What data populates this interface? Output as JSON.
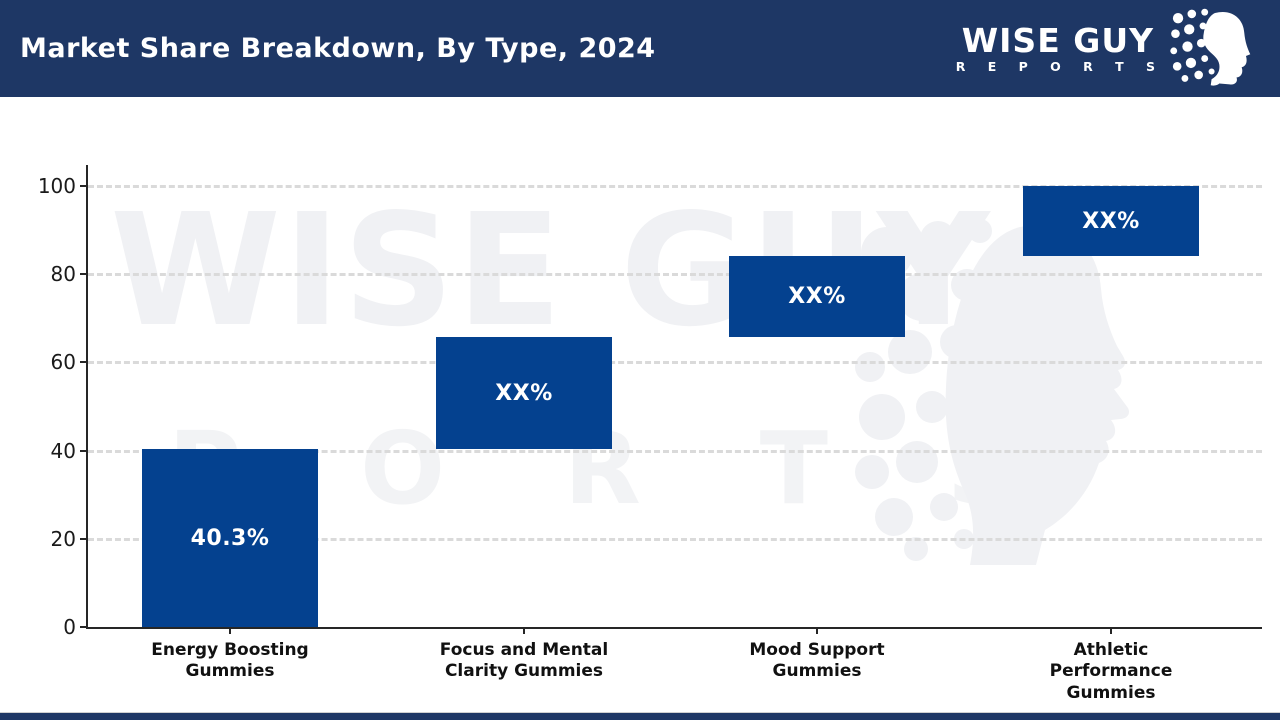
{
  "header": {
    "title": "Market Share Breakdown, By Type, 2024",
    "logo": {
      "name": "WISE GUY",
      "subname": "R E P O R T S"
    }
  },
  "watermark": {
    "line1": "WISE GUY",
    "line2": "P O R T S",
    "head_icon": "dotted-head-profile"
  },
  "chart_data": {
    "type": "bar",
    "variant": "waterfall",
    "title": "Market Share Breakdown, By Type, 2024",
    "categories": [
      "Energy Boosting\nGummies",
      "Focus and Mental\nClarity Gummies",
      "Mood Support\nGummies",
      "Athletic\nPerformance\nGummies"
    ],
    "segments": [
      {
        "category": "Energy Boosting Gummies",
        "start": 0,
        "end": 40.3,
        "label": "40.3%"
      },
      {
        "category": "Focus and Mental Clarity Gummies",
        "start": 40.3,
        "end": 65.8,
        "label": "XX%"
      },
      {
        "category": "Mood Support Gummies",
        "start": 65.8,
        "end": 84.1,
        "label": "XX%"
      },
      {
        "category": "Athletic Performance Gummies",
        "start": 84.1,
        "end": 100,
        "label": "XX%"
      }
    ],
    "xlabel": "",
    "ylabel": "",
    "yticks": [
      0,
      20,
      40,
      60,
      80,
      100
    ],
    "ylim": [
      0,
      105
    ],
    "grid": "horizontal-dashed",
    "legend": "none",
    "bar_color": "#04418f",
    "bar_label_color": "#ffffff"
  },
  "colors": {
    "header_bg": "#1e3765",
    "footer_bg": "#1e3765",
    "bar": "#04418f",
    "grid": "#dadada",
    "axis": "#262626",
    "tick_label": "#1a1a1a",
    "watermark": "#f0f1f4"
  }
}
